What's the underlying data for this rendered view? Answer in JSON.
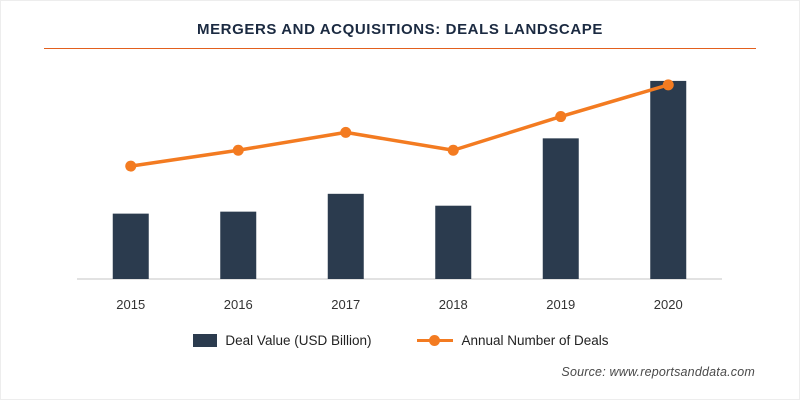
{
  "source": "Source: www.reportsanddata.com",
  "colors": {
    "bar": "#2b3b4e",
    "line": "#f37b21",
    "divider": "#e2601e",
    "axis": "#d9d9d9",
    "title": "#1b2a41"
  },
  "chart_data": {
    "type": "combo",
    "title": "MERGERS AND ACQUISITIONS: DEALS LANDSCAPE",
    "categories": [
      "2015",
      "2016",
      "2017",
      "2018",
      "2019",
      "2020"
    ],
    "series": [
      {
        "name": "Deal Value (USD Billion)",
        "type": "bar",
        "values": [
          33,
          34,
          43,
          37,
          71,
          100
        ]
      },
      {
        "name": "Annual Number of Deals",
        "type": "line",
        "values": [
          57,
          65,
          74,
          65,
          82,
          98
        ]
      }
    ],
    "xlabel": "",
    "ylabel": "",
    "ylim": [
      0,
      105
    ],
    "grid": false,
    "legend_position": "bottom"
  }
}
